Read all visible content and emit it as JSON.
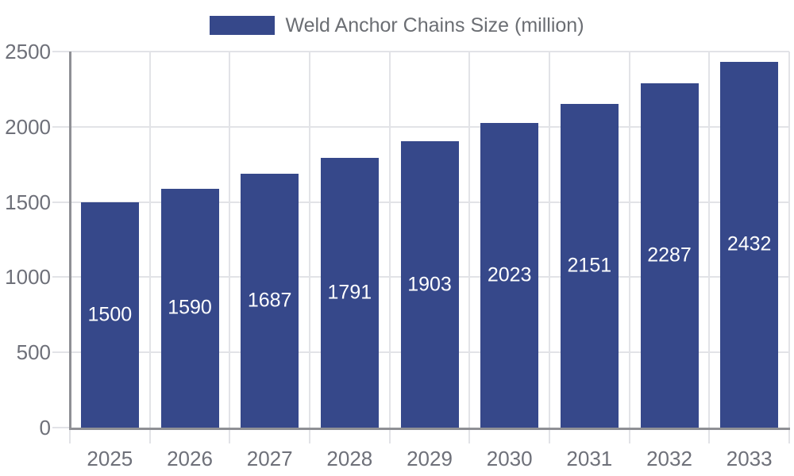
{
  "legend": {
    "label": "Weld Anchor Chains Size (million)"
  },
  "colors": {
    "bar": "#36488a",
    "value_label": "#ffffff",
    "axis_label": "#6e7079",
    "legend_text": "#6b6e73",
    "axis_line": "#8f9095",
    "grid_line": "#e2e3e7",
    "background": "#ffffff"
  },
  "chart_data": {
    "type": "bar",
    "title": "Weld Anchor Chains Size (million)",
    "categories": [
      "2025",
      "2026",
      "2027",
      "2028",
      "2029",
      "2030",
      "2031",
      "2032",
      "2033"
    ],
    "series": [
      {
        "name": "Weld Anchor Chains Size (million)",
        "values": [
          1500,
          1590,
          1687,
          1791,
          1903,
          2023,
          2151,
          2287,
          2432
        ]
      }
    ],
    "xlabel": "",
    "ylabel": "",
    "ylim": [
      0,
      2500
    ],
    "yticks": [
      0,
      500,
      1000,
      1500,
      2000,
      2500
    ],
    "grid": true,
    "legend_position": "top-center",
    "value_label_position": "inside-center"
  }
}
